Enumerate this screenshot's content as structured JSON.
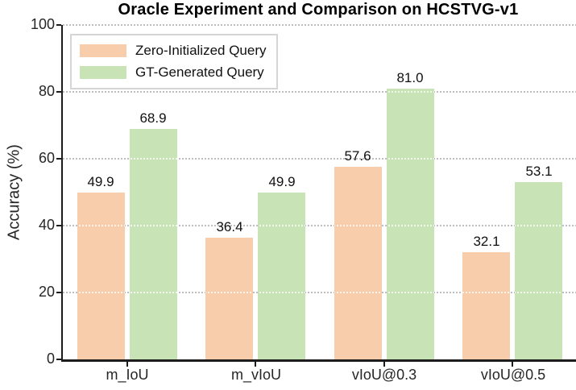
{
  "chart_data": {
    "type": "bar",
    "title": "Oracle Experiment and Comparison on HCSTVG-v1",
    "xlabel": "",
    "ylabel": "Accuracy (%)",
    "ylim": [
      0,
      100
    ],
    "yticks": [
      0,
      20,
      40,
      60,
      80,
      100
    ],
    "grid": "horizontal dotted black lines at each y tick",
    "legend_position": "top-left inside plot",
    "categories": [
      "m_IoU",
      "m_vIoU",
      "vIoU@0.3",
      "vIoU@0.5"
    ],
    "series": [
      {
        "name": "Zero-Initialized Query",
        "color": "#F8CDAB",
        "values": [
          49.9,
          36.4,
          57.6,
          32.1
        ]
      },
      {
        "name": "GT-Generated Query",
        "color": "#C8E3B6",
        "values": [
          68.9,
          49.9,
          81.0,
          53.1
        ]
      }
    ],
    "bar_value_labels": [
      "49.9",
      "36.4",
      "57.6",
      "32.1",
      "68.9",
      "49.9",
      "81.0",
      "53.1"
    ]
  },
  "colors": {
    "background": "#ffffff",
    "axis": "#1c1c1c",
    "grid": "#141414",
    "text": "#262626",
    "legend_border": "#d5d5d5"
  }
}
